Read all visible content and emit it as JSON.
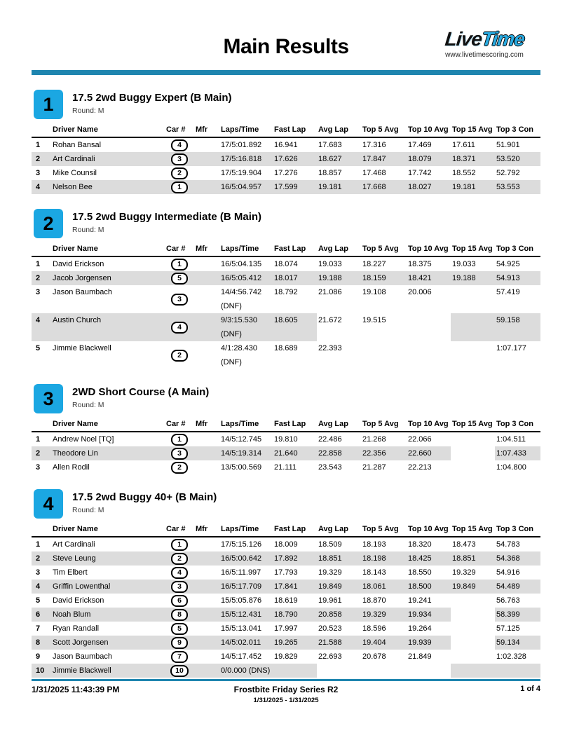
{
  "page": {
    "title": "Main Results",
    "logo": {
      "live": "Live",
      "time": "Time",
      "url": "www.livetimescoring.com"
    },
    "footer": {
      "timestamp": "1/31/2025 11:43:39 PM",
      "event": "Frostbite Friday Series R2",
      "dates": "1/31/2025 - 1/31/2025",
      "page_number": "1 of 4"
    }
  },
  "columns": [
    "Driver Name",
    "Car #",
    "Mfr",
    "Laps/Time",
    "Fast Lap",
    "Avg Lap",
    "Top 5 Avg",
    "Top 10 Avg",
    "Top 15 Avg",
    "Top 3 Con"
  ],
  "sections": [
    {
      "number": "1",
      "title": "17.5 2wd Buggy Expert (B Main)",
      "round": "Round: M",
      "rows": [
        {
          "pos": "1",
          "driver": "Rohan Bansal",
          "car": "4",
          "mfr": "",
          "laps": "17/5:01.892",
          "fast": "16.941",
          "avg": "17.683",
          "top5": "17.316",
          "top10": "17.469",
          "top15": "17.611",
          "top3": "51.901"
        },
        {
          "pos": "2",
          "driver": "Art Cardinali",
          "car": "3",
          "mfr": "",
          "laps": "17/5:16.818",
          "fast": "17.626",
          "avg": "18.627",
          "top5": "17.847",
          "top10": "18.079",
          "top15": "18.371",
          "top3": "53.520"
        },
        {
          "pos": "3",
          "driver": "Mike Counsil",
          "car": "2",
          "mfr": "",
          "laps": "17/5:19.904",
          "fast": "17.276",
          "avg": "18.857",
          "top5": "17.468",
          "top10": "17.742",
          "top15": "18.552",
          "top3": "52.792"
        },
        {
          "pos": "4",
          "driver": "Nelson Bee",
          "car": "1",
          "mfr": "",
          "laps": "16/5:04.957",
          "fast": "17.599",
          "avg": "19.181",
          "top5": "17.668",
          "top10": "18.027",
          "top15": "19.181",
          "top3": "53.553"
        }
      ]
    },
    {
      "number": "2",
      "title": "17.5 2wd Buggy Intermediate (B Main)",
      "round": "Round: M",
      "rows": [
        {
          "pos": "1",
          "driver": "David Erickson",
          "car": "1",
          "mfr": "",
          "laps": "16/5:04.135",
          "fast": "18.074",
          "avg": "19.033",
          "top5": "18.227",
          "top10": "18.375",
          "top15": "19.033",
          "top3": "54.925"
        },
        {
          "pos": "2",
          "driver": "Jacob Jorgensen",
          "car": "5",
          "mfr": "",
          "laps": "16/5:05.412",
          "fast": "18.017",
          "avg": "19.188",
          "top5": "18.159",
          "top10": "18.421",
          "top15": "19.188",
          "top3": "54.913"
        },
        {
          "pos": "3",
          "driver": "Jason Baumbach",
          "car": "3",
          "mfr": "",
          "laps": "14/4:56.742",
          "laps2": "(DNF)",
          "fast": "18.792",
          "avg": "21.086",
          "top5": "19.108",
          "top10": "20.006",
          "top15": "",
          "top3": "57.419"
        },
        {
          "pos": "4",
          "driver": "Austin Church",
          "car": "4",
          "mfr": "",
          "laps": "9/3:15.530",
          "laps2": "(DNF)",
          "fast": "18.605",
          "avg": "21.672",
          "top5": "19.515",
          "top10": "",
          "top15": "",
          "top3": "59.158",
          "white_cells": [
            "avg",
            "top5",
            "top10"
          ]
        },
        {
          "pos": "5",
          "driver": "Jimmie Blackwell",
          "car": "2",
          "mfr": "",
          "laps": "4/1:28.430",
          "laps2": "(DNF)",
          "fast": "18.689",
          "avg": "22.393",
          "top5": "",
          "top10": "",
          "top15": "",
          "top3": "1:07.177"
        }
      ]
    },
    {
      "number": "3",
      "title": "2WD Short Course (A Main)",
      "round": "Round: M",
      "rows": [
        {
          "pos": "1",
          "driver": "Andrew Noel [TQ]",
          "car": "1",
          "mfr": "",
          "laps": "14/5:12.745",
          "fast": "19.810",
          "avg": "22.486",
          "top5": "21.268",
          "top10": "22.066",
          "top15": "",
          "top3": "1:04.511"
        },
        {
          "pos": "2",
          "driver": "Theodore Lin",
          "car": "3",
          "mfr": "",
          "laps": "14/5:19.314",
          "fast": "21.640",
          "avg": "22.858",
          "top5": "22.356",
          "top10": "22.660",
          "top15": "",
          "top3": "1:07.433",
          "white_cells": [
            "top15"
          ]
        },
        {
          "pos": "3",
          "driver": "Allen Rodil",
          "car": "2",
          "mfr": "",
          "laps": "13/5:00.569",
          "fast": "21.111",
          "avg": "23.543",
          "top5": "21.287",
          "top10": "22.213",
          "top15": "",
          "top3": "1:04.800"
        }
      ]
    },
    {
      "number": "4",
      "title": "17.5 2wd Buggy 40+ (B Main)",
      "round": "Round: M",
      "rows": [
        {
          "pos": "1",
          "driver": "Art Cardinali",
          "car": "1",
          "mfr": "",
          "laps": "17/5:15.126",
          "fast": "18.009",
          "avg": "18.509",
          "top5": "18.193",
          "top10": "18.320",
          "top15": "18.473",
          "top3": "54.783"
        },
        {
          "pos": "2",
          "driver": "Steve Leung",
          "car": "2",
          "mfr": "",
          "laps": "16/5:00.642",
          "fast": "17.892",
          "avg": "18.851",
          "top5": "18.198",
          "top10": "18.425",
          "top15": "18.851",
          "top3": "54.368"
        },
        {
          "pos": "3",
          "driver": "Tim Elbert",
          "car": "4",
          "mfr": "",
          "laps": "16/5:11.997",
          "fast": "17.793",
          "avg": "19.329",
          "top5": "18.143",
          "top10": "18.550",
          "top15": "19.329",
          "top3": "54.916"
        },
        {
          "pos": "4",
          "driver": "Griffin Lowenthal",
          "car": "3",
          "mfr": "",
          "laps": "16/5:17.709",
          "fast": "17.841",
          "avg": "19.849",
          "top5": "18.061",
          "top10": "18.500",
          "top15": "19.849",
          "top3": "54.489"
        },
        {
          "pos": "5",
          "driver": "David Erickson",
          "car": "6",
          "mfr": "",
          "laps": "15/5:05.876",
          "fast": "18.619",
          "avg": "19.961",
          "top5": "18.870",
          "top10": "19.241",
          "top15": "",
          "top3": "56.763"
        },
        {
          "pos": "6",
          "driver": "Noah Blum",
          "car": "8",
          "mfr": "",
          "laps": "15/5:12.431",
          "fast": "18.790",
          "avg": "20.858",
          "top5": "19.329",
          "top10": "19.934",
          "top15": "",
          "top3": "58.399",
          "white_cells": [
            "top15"
          ]
        },
        {
          "pos": "7",
          "driver": "Ryan Randall",
          "car": "5",
          "mfr": "",
          "laps": "15/5:13.041",
          "fast": "17.997",
          "avg": "20.523",
          "top5": "18.596",
          "top10": "19.264",
          "top15": "",
          "top3": "57.125"
        },
        {
          "pos": "8",
          "driver": "Scott Jorgensen",
          "car": "9",
          "mfr": "",
          "laps": "14/5:02.011",
          "fast": "19.265",
          "avg": "21.588",
          "top5": "19.404",
          "top10": "19.939",
          "top15": "",
          "top3": "59.134",
          "white_cells": [
            "top15"
          ]
        },
        {
          "pos": "9",
          "driver": "Jason Baumbach",
          "car": "7",
          "mfr": "",
          "laps": "14/5:17.452",
          "fast": "19.829",
          "avg": "22.693",
          "top5": "20.678",
          "top10": "21.849",
          "top15": "",
          "top3": "1:02.328"
        },
        {
          "pos": "10",
          "driver": "Jimmie Blackwell",
          "car": "10",
          "mfr": "",
          "laps": "0/0.000 (DNS)",
          "fast": "",
          "avg": "",
          "top5": "",
          "top10": "",
          "top15": "",
          "top3": "",
          "white_cells": [
            "avg",
            "top5",
            "top10"
          ]
        }
      ]
    }
  ]
}
